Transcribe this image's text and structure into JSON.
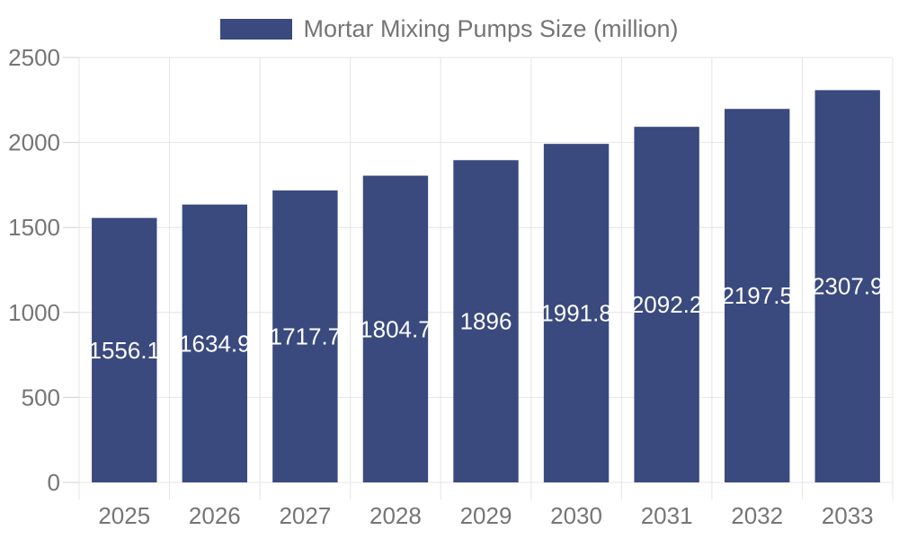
{
  "legend": {
    "label": "Mortar Mixing Pumps Size (million)"
  },
  "chart_data": {
    "type": "bar",
    "title": "Mortar Mixing Pumps Size (million)",
    "categories": [
      "2025",
      "2026",
      "2027",
      "2028",
      "2029",
      "2030",
      "2031",
      "2032",
      "2033"
    ],
    "series": [
      {
        "name": "Mortar Mixing Pumps Size (million)",
        "values": [
          1556.1,
          1634.9,
          1717.7,
          1804.7,
          1896,
          1991.8,
          2092.2,
          2197.5,
          2307.9
        ],
        "labels": [
          "1556.1",
          "1634.9",
          "1717.7",
          "1804.7",
          "1896",
          "1991.8",
          "2092.2",
          "2197.5",
          "2307.9"
        ]
      }
    ],
    "xlabel": "",
    "ylabel": "",
    "ylim": [
      0,
      2500
    ],
    "y_ticks": [
      0,
      500,
      1000,
      1500,
      2000,
      2500
    ],
    "grid": true,
    "legend_position": "top",
    "value_label_position": "inside-center",
    "colors": {
      "bar": "#3A4A7E",
      "grid": "#E4E4E4",
      "axis": "#D0D0D0",
      "text": "#757575",
      "value_label": "#FFFFFF",
      "background": "#FFFFFF"
    }
  }
}
